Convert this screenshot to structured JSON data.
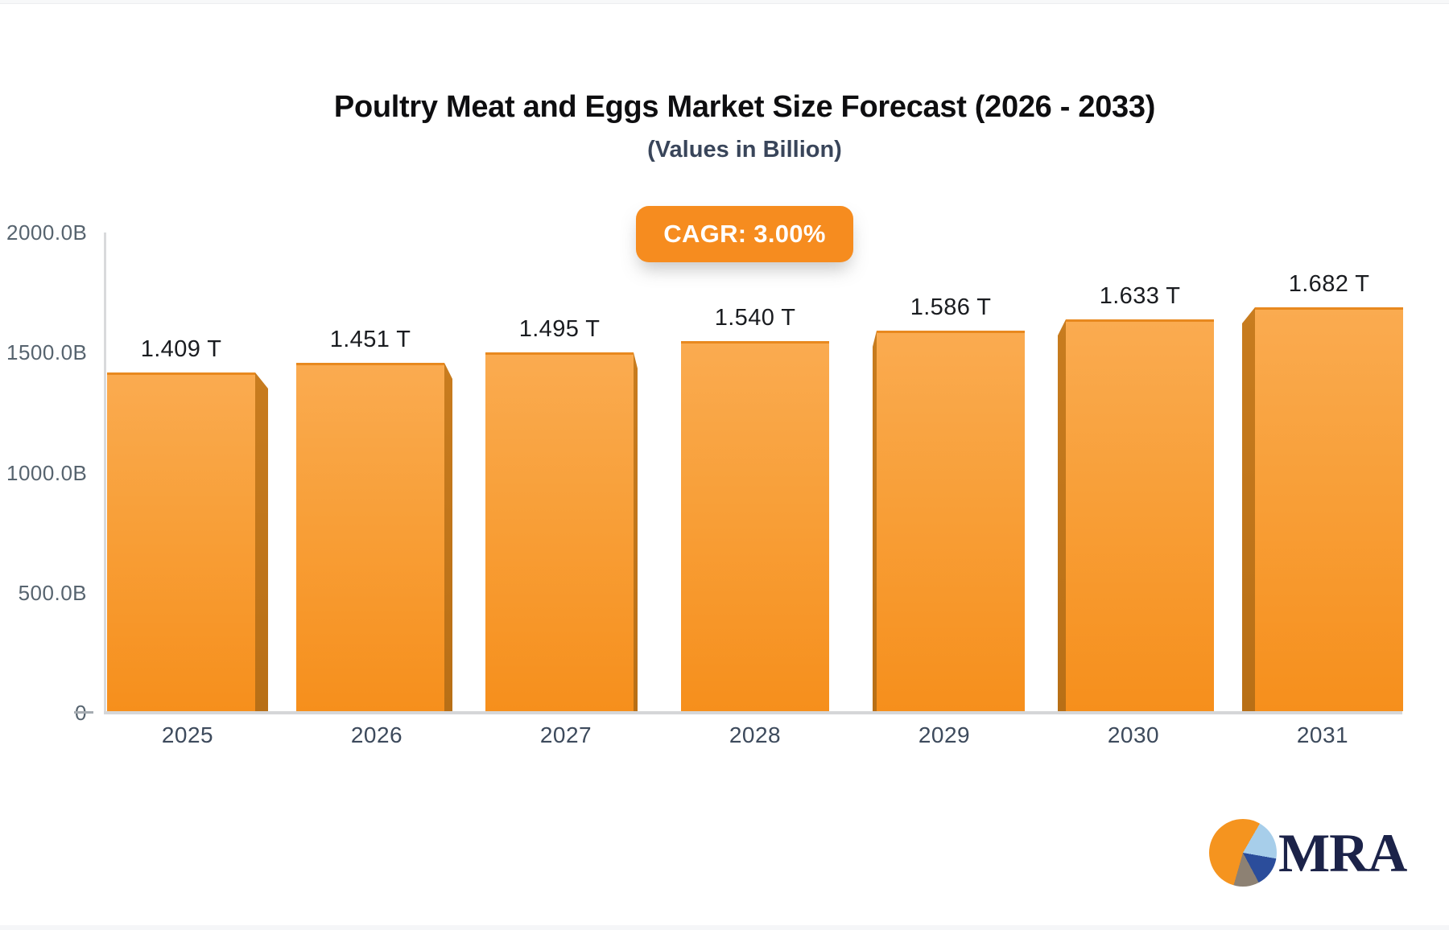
{
  "header": {
    "title": "Poultry Meat and Eggs Market Size Forecast (2026 - 2033)",
    "subtitle": "(Values in Billion)",
    "cagr_badge": "CAGR: 3.00%"
  },
  "chart_data": {
    "type": "bar",
    "title": "Poultry Meat and Eggs Market Size Forecast (2026 - 2033)",
    "subtitle": "(Values in Billion)",
    "unit": "Billion",
    "cagr_percent": 3.0,
    "categories": [
      "2025",
      "2026",
      "2027",
      "2028",
      "2029",
      "2030",
      "2031"
    ],
    "values": [
      1409,
      1451,
      1495,
      1540,
      1586,
      1633,
      1682
    ],
    "value_labels": [
      "1.409 T",
      "1.451 T",
      "1.495 T",
      "1.540 T",
      "1.586 T",
      "1.633 T",
      "1.682 T"
    ],
    "ylim": [
      0,
      2000
    ],
    "y_ticks": [
      {
        "label": "2000.0B",
        "value": 2000
      },
      {
        "label": "1500.0B",
        "value": 1500
      },
      {
        "label": "1000.0B",
        "value": 1000
      },
      {
        "label": "500.0B",
        "value": 500
      },
      {
        "label": "0",
        "value": 0
      }
    ],
    "legend": "none",
    "grid": "off",
    "colors": {
      "bar_top": "#FAAB50",
      "bar_bottom": "#F68F1C",
      "bar_side_3d": "#BF7419",
      "badge_background": "#F68C1F",
      "badge_text": "#FFFFFF",
      "axis_line": "#D9DADC",
      "axis_label": "#57646F",
      "category_label": "#3D4A5C",
      "value_label": "#1A1C20",
      "title_text": "#0E0E10",
      "subtitle_text": "#39455A"
    }
  },
  "branding": {
    "logo_text": "MRA",
    "logo_text_color": "#1C2349",
    "pie_colors": [
      "#F5941F",
      "#A7CEEA",
      "#2B4D9B",
      "#8D8173"
    ]
  }
}
